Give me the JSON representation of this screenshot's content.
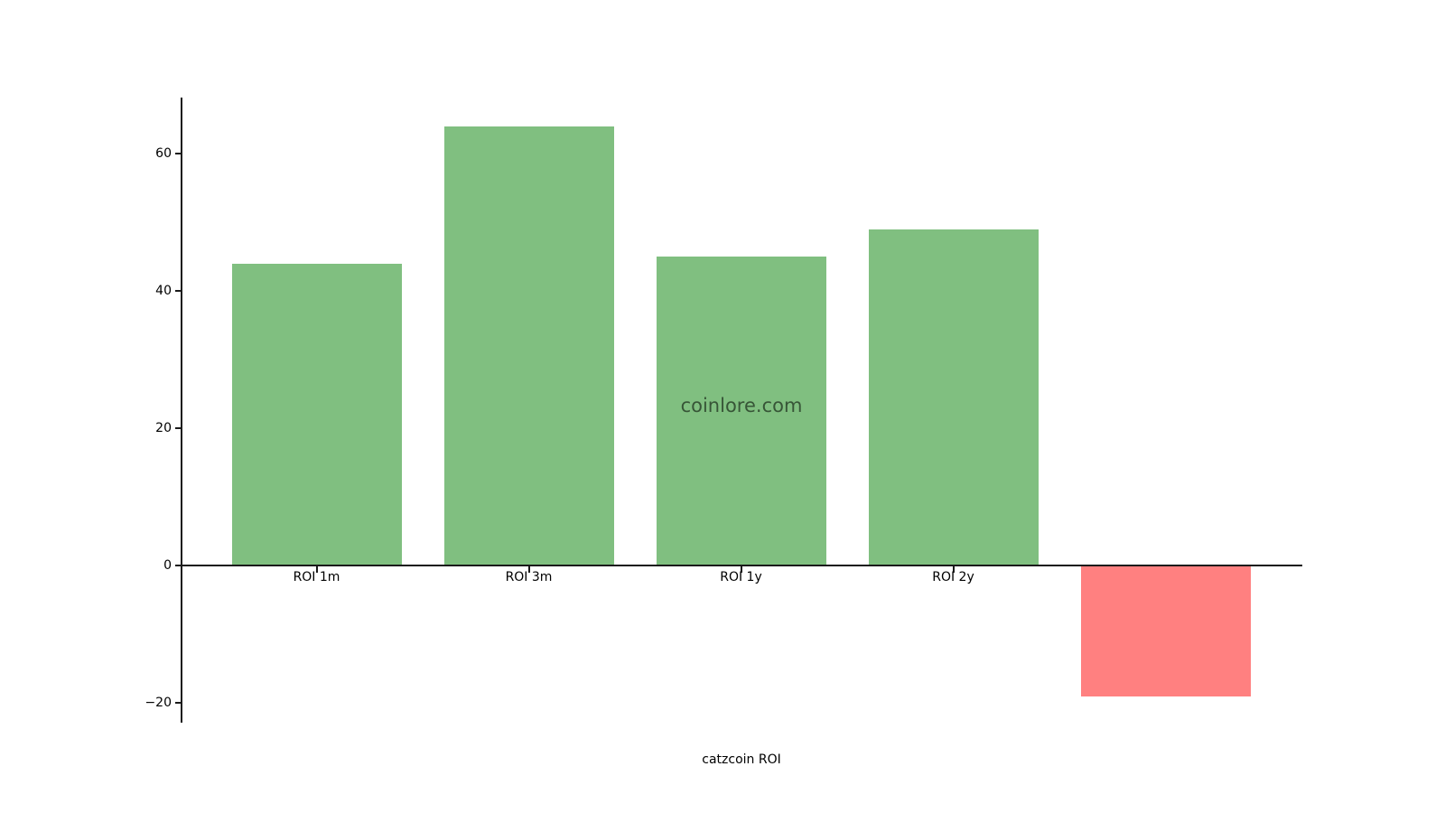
{
  "chart_data": {
    "type": "bar",
    "title": "",
    "xlabel": "catzcoin ROI",
    "ylabel": "",
    "categories": [
      "ROI 1m",
      "ROI 3m",
      "ROI 1y",
      "ROI 2y",
      ""
    ],
    "values": [
      44,
      64,
      45,
      49,
      -19
    ],
    "bar_colors": [
      "#80BF80",
      "#80BF80",
      "#80BF80",
      "#80BF80",
      "#FF8080"
    ],
    "positive_color": "#80BF80",
    "negative_color": "#FF8080",
    "yticks": [
      {
        "value": 60,
        "label": "60"
      },
      {
        "value": 40,
        "label": "40"
      },
      {
        "value": 20,
        "label": "20"
      },
      {
        "value": 0,
        "label": "0"
      },
      {
        "value": -20,
        "label": "−20"
      }
    ],
    "ylim": [
      -22.9,
      68.2
    ],
    "grid": false,
    "legend": null,
    "watermark": "coinlore.com"
  },
  "colors": {
    "axis": "#1a1a1a",
    "text": "#000000"
  }
}
